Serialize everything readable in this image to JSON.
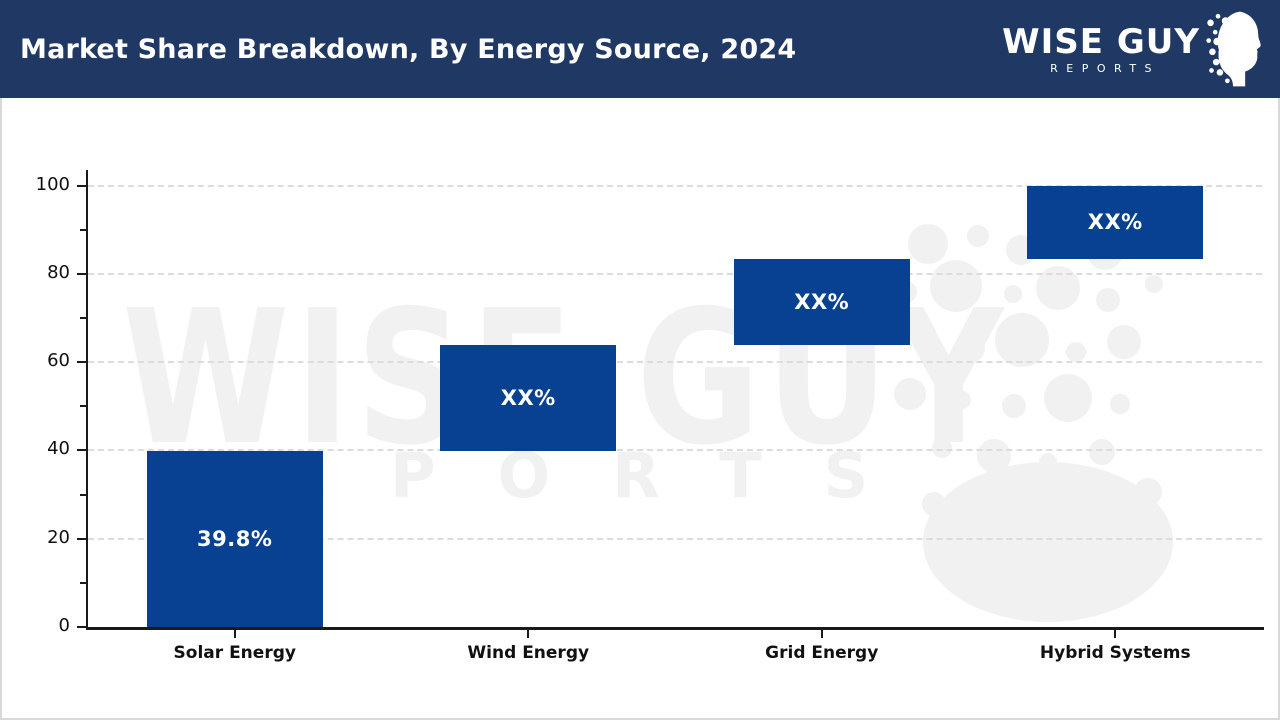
{
  "header": {
    "title": "Market Share Breakdown, By Energy Source, 2024",
    "logo": {
      "line1": "WISE GUY",
      "line2": "REPORTS"
    }
  },
  "watermark": {
    "line1": "WISE GUY",
    "line2": "REPORTS"
  },
  "theme": {
    "header_bg": "#1f3864",
    "bar_color": "#084191",
    "bar_label_color": "#ffffff",
    "axis_color": "#1a1a1a",
    "grid_color": "#dcdcdc",
    "tick_label_color": "#111111",
    "watermark_color": "#f1f1f1",
    "frame_border_color": "#d9d9d9"
  },
  "chart_data": {
    "type": "bar",
    "subtype": "waterfall-stacked-percentage",
    "title": "Market Share Breakdown, By Energy Source, 2024",
    "categories": [
      "Solar Energy",
      "Wind Energy",
      "Grid Energy",
      "Hybrid Systems"
    ],
    "segments": [
      {
        "category": "Solar Energy",
        "start": 0,
        "end": 39.8,
        "label": "39.8%"
      },
      {
        "category": "Wind Energy",
        "start": 39.8,
        "end": 63.9,
        "label": "XX%"
      },
      {
        "category": "Grid Energy",
        "start": 63.9,
        "end": 83.4,
        "label": "XX%"
      },
      {
        "category": "Hybrid Systems",
        "start": 83.4,
        "end": 100,
        "label": "XX%"
      }
    ],
    "unit": "%",
    "xlabel": "",
    "ylabel": "",
    "ylim": [
      0,
      100
    ],
    "yticks": [
      0,
      20,
      40,
      60,
      80,
      100
    ],
    "minor_ticks_every": 10,
    "grid": "horizontal-dashed",
    "legend": "none"
  }
}
